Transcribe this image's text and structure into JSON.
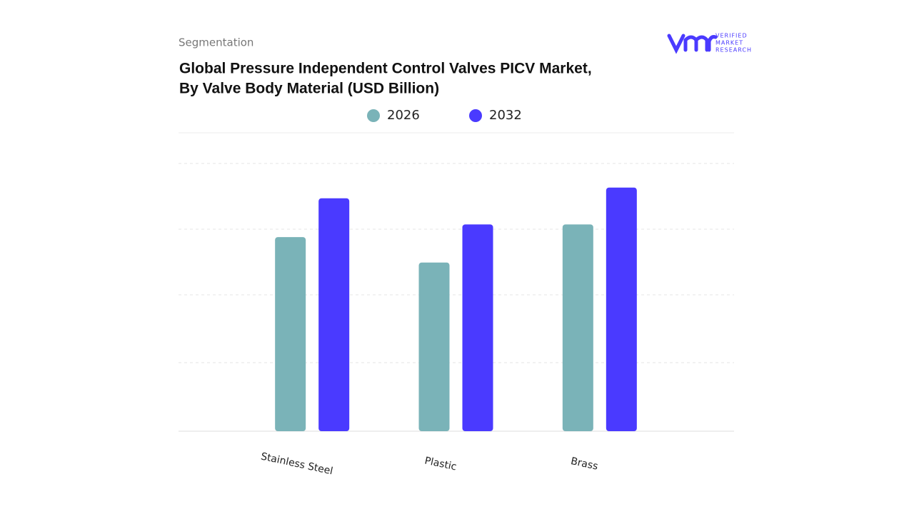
{
  "header": {
    "section": "Segmentation",
    "logo": [
      "VERIFIED",
      "MARKET",
      "RESEARCH"
    ]
  },
  "chart_data": {
    "type": "bar",
    "title": [
      "Global Pressure Independent Control Valves PICV Market,",
      "By Valve Body Material (USD Billion)"
    ],
    "categories": [
      "Stainless Steel",
      "Plastic",
      "Brass"
    ],
    "series": [
      {
        "name": "2026",
        "color": "#7ab3b8",
        "values": [
          2.9,
          2.52,
          3.09
        ]
      },
      {
        "name": "2032",
        "color": "#4a3aff",
        "values": [
          3.48,
          3.09,
          3.64
        ]
      }
    ],
    "ylim": [
      0,
      4
    ]
  }
}
